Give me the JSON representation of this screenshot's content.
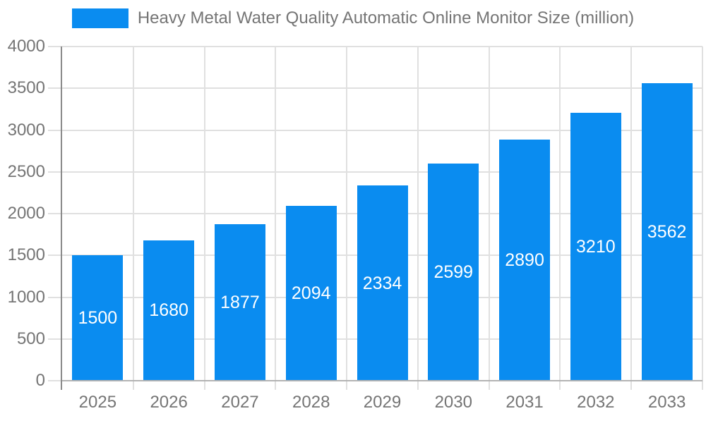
{
  "chart_data": {
    "type": "bar",
    "title": "Heavy Metal Water Quality Automatic Online Monitor Size (million)",
    "legend": {
      "position": "top",
      "label": "Heavy Metal Water Quality Automatic Online Monitor Size (million)"
    },
    "categories": [
      "2025",
      "2026",
      "2027",
      "2028",
      "2029",
      "2030",
      "2031",
      "2032",
      "2033"
    ],
    "series": [
      {
        "name": "Heavy Metal Water Quality Automatic Online Monitor Size (million)",
        "values": [
          1500,
          1680,
          1877,
          2094,
          2334,
          2599,
          2890,
          3210,
          3562
        ]
      }
    ],
    "value_labels": [
      "1500",
      "1680",
      "1877",
      "2094",
      "2334",
      "2599",
      "2890",
      "3210",
      "3562"
    ],
    "value_label_position": "inside-center",
    "xlabel": "",
    "ylabel": "",
    "ylim": [
      0,
      4000
    ],
    "ytick_step": 500,
    "ytick_labels": [
      "0",
      "500",
      "1000",
      "1500",
      "2000",
      "2500",
      "3000",
      "3500",
      "4000"
    ],
    "grid": true,
    "colors": {
      "bar": "#0a8cf0",
      "axis_text": "#757575",
      "grid_line": "#e0e0e0",
      "y_axis_line": "#8a8a8a",
      "x_axis_line": "#b3b3b3",
      "value_label_text": "#ffffff",
      "background": "#ffffff"
    }
  }
}
